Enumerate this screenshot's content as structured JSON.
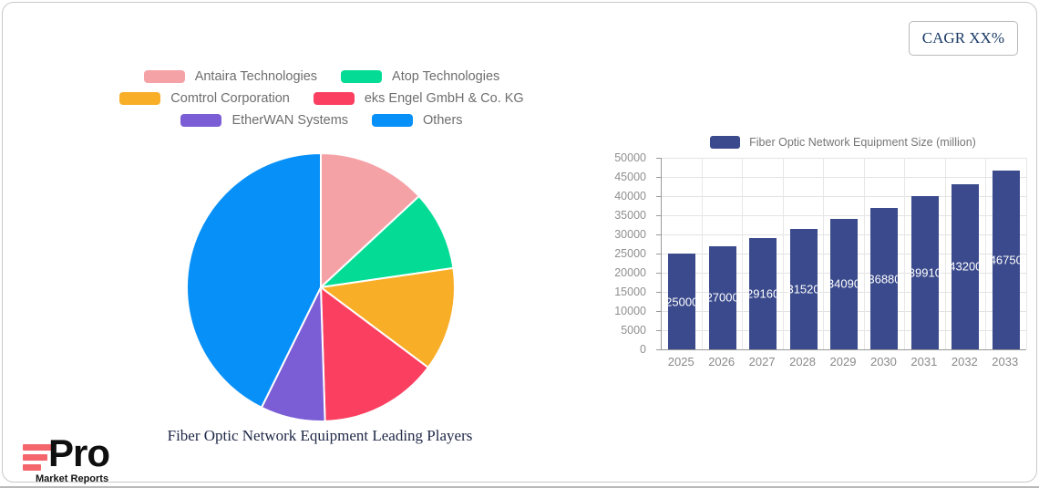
{
  "header": {
    "cagr_label": "CAGR XX%"
  },
  "logo": {
    "brand": "Pro",
    "subtitle": "Market Reports",
    "accent_color": "#f4656c"
  },
  "chart_data": [
    {
      "type": "pie",
      "title": "Fiber Optic Network Equipment Leading Players",
      "labels": [
        "Antaira Technologies",
        "Atop Technologies",
        "Comtrol Corporation",
        "eks Engel GmbH & Co. KG",
        "EtherWAN Systems",
        "Others"
      ],
      "values": [
        13.1,
        9.6,
        12.5,
        14.3,
        7.8,
        42.7
      ],
      "values_unit": "% share",
      "colors": [
        "#f5a2a7",
        "#04dc96",
        "#f9ae28",
        "#fa3f60",
        "#7b5dd6",
        "#0790f8"
      ],
      "legend_position": "top",
      "legend_rows": [
        [
          0,
          1
        ],
        [
          2,
          3
        ],
        [
          4,
          5
        ]
      ],
      "slice_border_color": "#ffffff"
    },
    {
      "type": "bar",
      "categories": [
        "2025",
        "2026",
        "2027",
        "2028",
        "2029",
        "2030",
        "2031",
        "2032",
        "2033"
      ],
      "series": [
        {
          "name": "Fiber Optic Network Equipment Size (million)",
          "values": [
            25000,
            27000,
            29160,
            31520,
            34090,
            36880,
            39910,
            43200,
            46750
          ]
        }
      ],
      "ylim": [
        0,
        50000
      ],
      "ytick_step": 5000,
      "bar_color": "#3a4a8c",
      "grid": true,
      "legend_position": "top",
      "value_label_color": "#ffffff"
    }
  ]
}
